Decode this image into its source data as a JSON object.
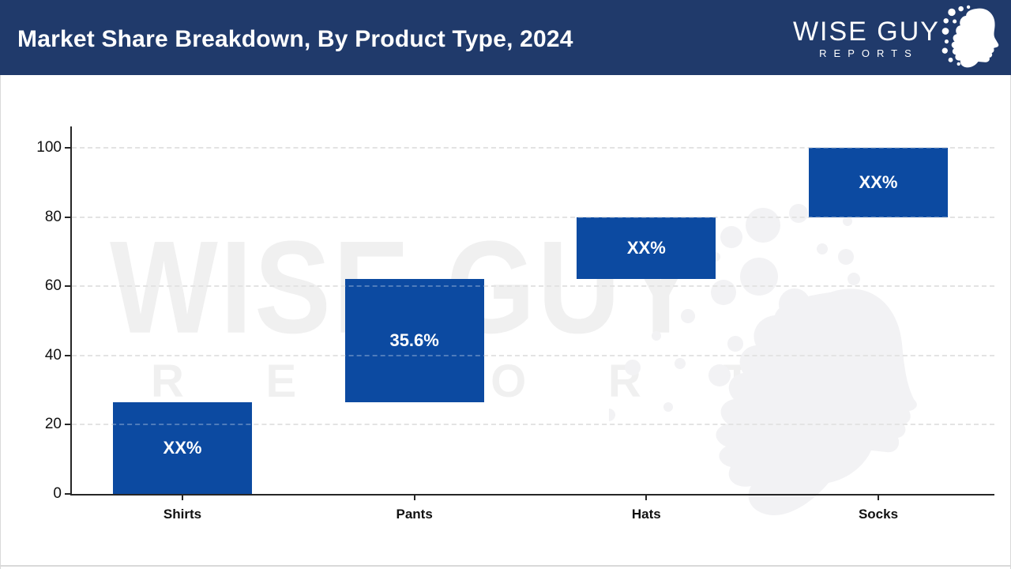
{
  "header": {
    "title": "Market Share Breakdown, By Product Type, 2024",
    "logo": {
      "line1": "WISE GUY",
      "line2": "REPORTS"
    }
  },
  "watermark": {
    "line1": "WISE GUY",
    "line2": "REPORTS"
  },
  "colors": {
    "header_bg": "#203a6b",
    "bar": "#0c4aa1",
    "bar_label": "#ffffff",
    "grid": "#d9d9d9",
    "axis": "#262626",
    "watermark": "#f0f0f0",
    "watermark_head": "#f2f2f4"
  },
  "chart_data": {
    "type": "bar",
    "subtype": "waterfall-floating-bars",
    "title": "Market Share Breakdown, By Product Type, 2024",
    "xlabel": "",
    "ylabel": "",
    "categories": [
      "Shirts",
      "Pants",
      "Hats",
      "Socks"
    ],
    "segments": [
      {
        "category": "Shirts",
        "start": 0,
        "end": 26.5,
        "value_label": "XX%"
      },
      {
        "category": "Pants",
        "start": 26.5,
        "end": 62.1,
        "value_label": "35.6%"
      },
      {
        "category": "Hats",
        "start": 62.1,
        "end": 80,
        "value_label": "XX%"
      },
      {
        "category": "Socks",
        "start": 80,
        "end": 100,
        "value_label": "XX%"
      }
    ],
    "ylim": [
      0,
      100
    ],
    "yticks": [
      0,
      20,
      40,
      60,
      80,
      100
    ],
    "grid": "horizontal-dashed",
    "legend": "none"
  }
}
